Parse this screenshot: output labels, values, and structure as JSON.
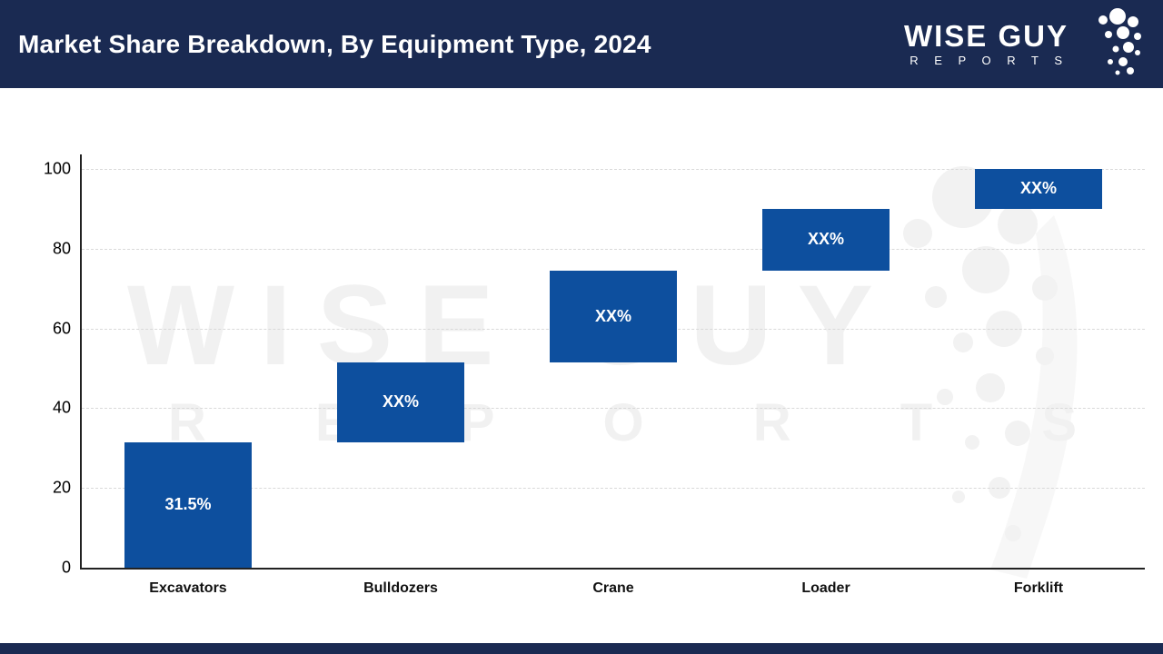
{
  "header": {
    "title": "Market Share Breakdown, By Equipment Type, 2024",
    "logo": {
      "line1": "WISE GUY",
      "line2": "R E P O R T S"
    },
    "bg_color": "#1a2a52"
  },
  "chart_data": {
    "type": "bar",
    "variant": "waterfall",
    "title": "Market Share Breakdown, By Equipment Type, 2024",
    "categories": [
      "Excavators",
      "Bulldozers",
      "Crane",
      "Loader",
      "Forklift"
    ],
    "segments": [
      {
        "category": "Excavators",
        "start": 0,
        "end": 31.5,
        "label": "31.5%"
      },
      {
        "category": "Bulldozers",
        "start": 31.5,
        "end": 51.5,
        "label": "XX%"
      },
      {
        "category": "Crane",
        "start": 51.5,
        "end": 74.5,
        "label": "XX%"
      },
      {
        "category": "Loader",
        "start": 74.5,
        "end": 90,
        "label": "XX%"
      },
      {
        "category": "Forklift",
        "start": 90,
        "end": 100,
        "label": "XX%"
      }
    ],
    "yticks": [
      0,
      20,
      40,
      60,
      80,
      100
    ],
    "ylim": [
      0,
      100
    ],
    "xlabel": "",
    "ylabel": "",
    "grid": "horizontal-dashed",
    "legend": "none",
    "bar_color": "#0d4f9e",
    "bar_label_color": "#ffffff",
    "watermark": {
      "line1": "WISE GUY",
      "line2": "R E P O R T S"
    }
  }
}
